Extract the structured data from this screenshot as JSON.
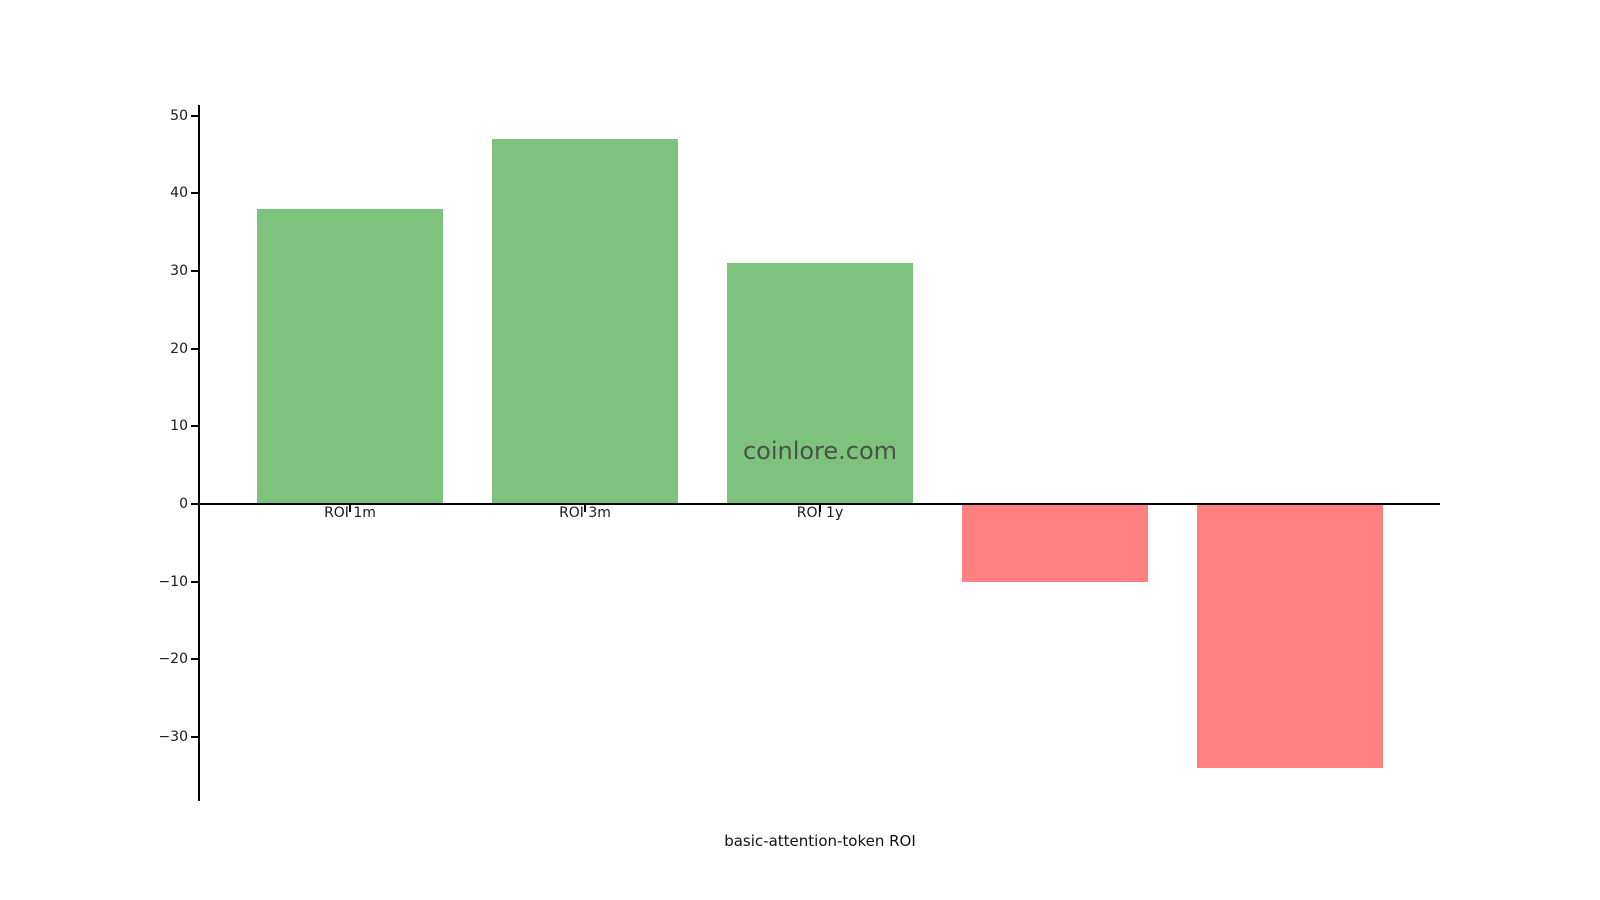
{
  "chart_data": {
    "type": "bar",
    "title": "basic-attention-token ROI",
    "watermark": "coinlore.com",
    "categories": [
      "ROI 1m",
      "ROI 3m",
      "ROI 1y",
      "",
      ""
    ],
    "values": [
      38,
      47,
      31,
      -10,
      -34
    ],
    "yticks": [
      {
        "value": 50,
        "label": "50"
      },
      {
        "value": 40,
        "label": "40"
      },
      {
        "value": 30,
        "label": "30"
      },
      {
        "value": 20,
        "label": "20"
      },
      {
        "value": 10,
        "label": "10"
      },
      {
        "value": 0,
        "label": "0"
      },
      {
        "value": -10,
        "label": "−10"
      },
      {
        "value": -20,
        "label": "−20"
      },
      {
        "value": -30,
        "label": "−30"
      }
    ],
    "ylim": [
      -38.2,
      51.4
    ],
    "xlabel": "",
    "ylabel": "",
    "grid": false,
    "legend": null,
    "positive_color": "#7dc27d",
    "negative_color": "#ff8080",
    "axis_color": "#000000",
    "tick_label_color": "#1a1a1a",
    "title_color": "#111111",
    "watermark_color": "#4a524a"
  }
}
